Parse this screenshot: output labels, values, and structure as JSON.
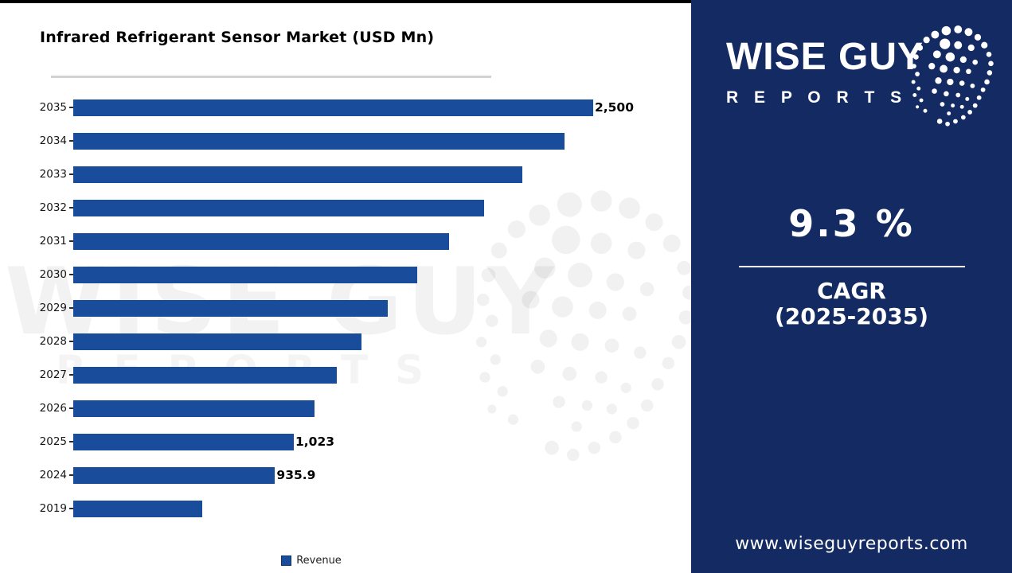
{
  "header": {
    "title": "Infrared Refrigerant Sensor Market (USD Mn)"
  },
  "chart_data": {
    "type": "bar",
    "orientation": "horizontal",
    "title": "Infrared Refrigerant Sensor Market (USD Mn)",
    "xlabel": "",
    "ylabel": "",
    "xlim": [
      0,
      2600
    ],
    "grid": false,
    "legend": [
      "Revenue"
    ],
    "legend_position": "bottom",
    "bar_color": "#1a4c9c",
    "categories": [
      "2035",
      "2034",
      "2033",
      "2032",
      "2031",
      "2030",
      "2029",
      "2028",
      "2027",
      "2026",
      "2025",
      "2024",
      "2019"
    ],
    "values": [
      2500,
      2278,
      2084,
      1906,
      1744,
      1596,
      1460,
      1336,
      1222,
      1118,
      1023,
      935.9,
      600
    ],
    "data_labels": [
      "2,500",
      "",
      "",
      "",
      "",
      "",
      "",
      "",
      "",
      "",
      "1,023",
      "935.9",
      ""
    ]
  },
  "legend": {
    "revenue_label": "Revenue"
  },
  "watermark": {
    "line1": "WISE GUY",
    "line2": "REPORTS"
  },
  "panel": {
    "logo_title": "WISE GUY",
    "logo_subtitle": "R E P O R T S",
    "cagr_value": "9.3 %",
    "cagr_line1": "CAGR",
    "cagr_line2": "(2025-2035)",
    "website": "www.wiseguyreports.com"
  },
  "colors": {
    "bar": "#1a4c9c",
    "panel_background": "#132a62",
    "divider": "#d2d2d2"
  }
}
